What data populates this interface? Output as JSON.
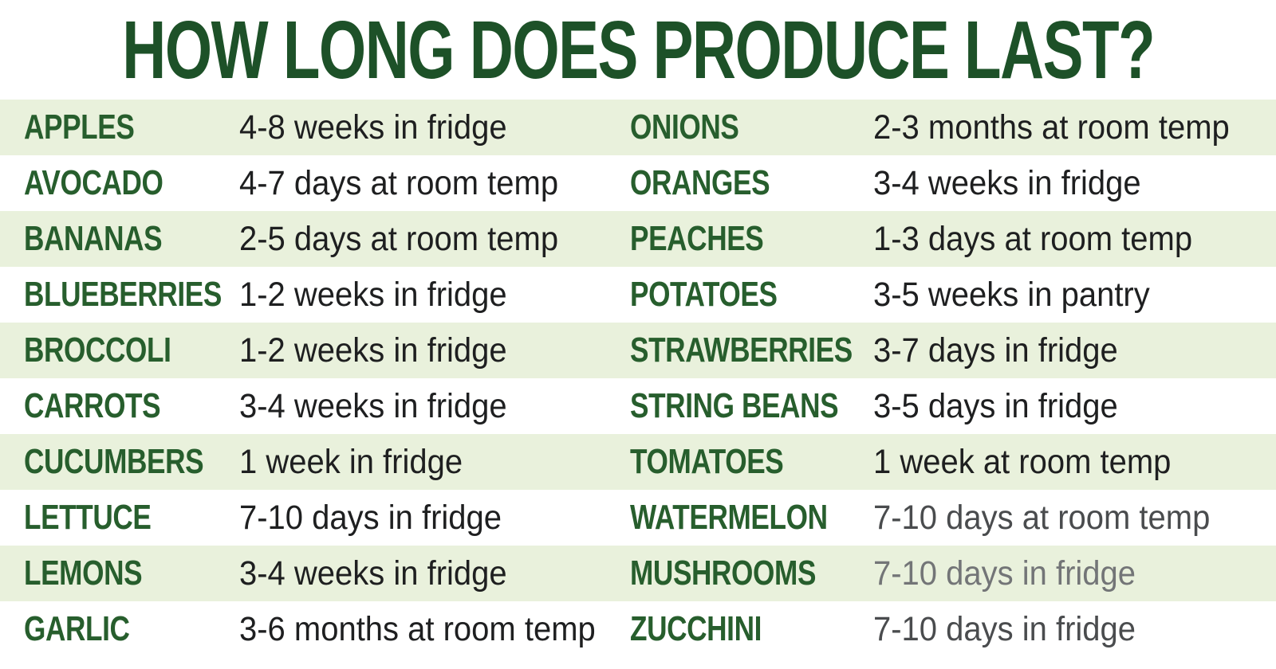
{
  "title": "HOW LONG DOES PRODUCE LAST?",
  "theme": {
    "title_green": "#1d5128",
    "name_green": "#275e2d",
    "row_stripe_green": "#e9f1dc",
    "value_black": "#1e1f20",
    "value_dark_gray": "#4a4c4e",
    "value_light_gray": "#737577"
  },
  "table": {
    "rows": [
      {
        "left": {
          "name": "APPLES",
          "value": "4-8 weeks in fridge"
        },
        "right": {
          "name": "ONIONS",
          "value": "2-3 months at room temp"
        }
      },
      {
        "left": {
          "name": "AVOCADO",
          "value": "4-7 days at room temp"
        },
        "right": {
          "name": "ORANGES",
          "value": "3-4 weeks in fridge"
        }
      },
      {
        "left": {
          "name": "BANANAS",
          "value": "2-5 days at room temp"
        },
        "right": {
          "name": "PEACHES",
          "value": "1-3 days at room temp"
        }
      },
      {
        "left": {
          "name": "BLUEBERRIES",
          "value": "1-2 weeks in fridge"
        },
        "right": {
          "name": "POTATOES",
          "value": "3-5 weeks in pantry"
        }
      },
      {
        "left": {
          "name": "BROCCOLI",
          "value": "1-2 weeks in fridge"
        },
        "right": {
          "name": "STRAWBERRIES",
          "value": "3-7 days in fridge"
        }
      },
      {
        "left": {
          "name": "CARROTS",
          "value": "3-4 weeks in fridge"
        },
        "right": {
          "name": "STRING BEANS",
          "value": "3-5 days in fridge"
        }
      },
      {
        "left": {
          "name": "CUCUMBERS",
          "value": "1 week in fridge"
        },
        "right": {
          "name": "TOMATOES",
          "value": "1 week at room temp"
        }
      },
      {
        "left": {
          "name": "LETTUCE",
          "value": "7-10 days in fridge"
        },
        "right": {
          "name": "WATERMELON",
          "value": "7-10 days at room temp",
          "tone": "dark-gray"
        }
      },
      {
        "left": {
          "name": "LEMONS",
          "value": "3-4 weeks in fridge"
        },
        "right": {
          "name": "MUSHROOMS",
          "value": "7-10 days in fridge",
          "tone": "light-gray"
        }
      },
      {
        "left": {
          "name": "GARLIC",
          "value": "3-6 months at room temp"
        },
        "right": {
          "name": "ZUCCHINI",
          "value": "7-10 days in fridge",
          "tone": "dark-gray"
        }
      }
    ]
  }
}
